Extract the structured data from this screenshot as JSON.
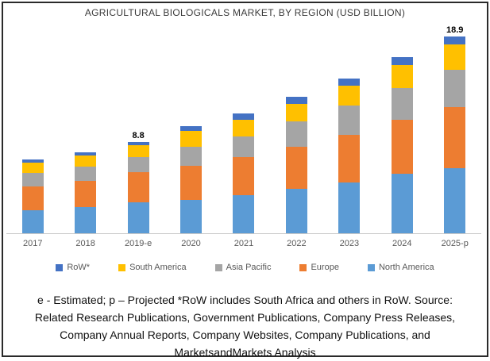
{
  "chart_data": {
    "type": "bar",
    "stacked": true,
    "title": "AGRICULTURAL BIOLOGICALS MARKET, BY REGION (USD BILLION)",
    "categories": [
      "2017",
      "2018",
      "2019-e",
      "2020",
      "2021",
      "2022",
      "2023",
      "2024",
      "2025-p"
    ],
    "series": [
      {
        "name": "North America",
        "color": "#5B9BD5",
        "values": [
          2.2,
          2.55,
          3.0,
          3.2,
          3.65,
          4.25,
          4.9,
          5.7,
          6.25
        ]
      },
      {
        "name": "Europe",
        "color": "#ED7D31",
        "values": [
          2.3,
          2.5,
          2.85,
          3.3,
          3.65,
          4.1,
          4.6,
          5.2,
          5.9
        ]
      },
      {
        "name": "Asia Pacific",
        "color": "#A5A5A5",
        "values": [
          1.3,
          1.35,
          1.45,
          1.85,
          2.05,
          2.45,
          2.8,
          3.1,
          3.55
        ]
      },
      {
        "name": "South America",
        "color": "#FFC000",
        "values": [
          1.0,
          1.05,
          1.2,
          1.5,
          1.6,
          1.65,
          1.9,
          2.2,
          2.45
        ]
      },
      {
        "name": "RoW*",
        "color": "#4472C4",
        "values": [
          0.3,
          0.3,
          0.3,
          0.45,
          0.6,
          0.65,
          0.7,
          0.75,
          0.75
        ]
      }
    ],
    "bar_labels": [
      "",
      "",
      "8.8",
      "",
      "",
      "",
      "",
      "",
      "18.9"
    ],
    "labeled_totals": {
      "2019-e": 8.8,
      "2025-p": 18.9
    },
    "legend_order": [
      "RoW*",
      "South America",
      "Asia Pacific",
      "Europe",
      "North America"
    ],
    "legend_position": "bottom",
    "gridlines": false,
    "axis_line_color": "#c9c9c9",
    "ylim": [
      0,
      20
    ]
  },
  "footer": {
    "lines": [
      "e - Estimated; p – Projected *RoW includes South Africa and others in RoW. Source:",
      "Related Research Publications, Government Publications, Company Press Releases,",
      "Company Annual Reports, Company Websites, Company Publications, and",
      "MarketsandMarkets Analysis"
    ]
  },
  "colors": {
    "title_text": "#3b3b3b",
    "axis_label": "#595959",
    "data_label": "#000000",
    "frame_border": "#2a2a2a"
  }
}
